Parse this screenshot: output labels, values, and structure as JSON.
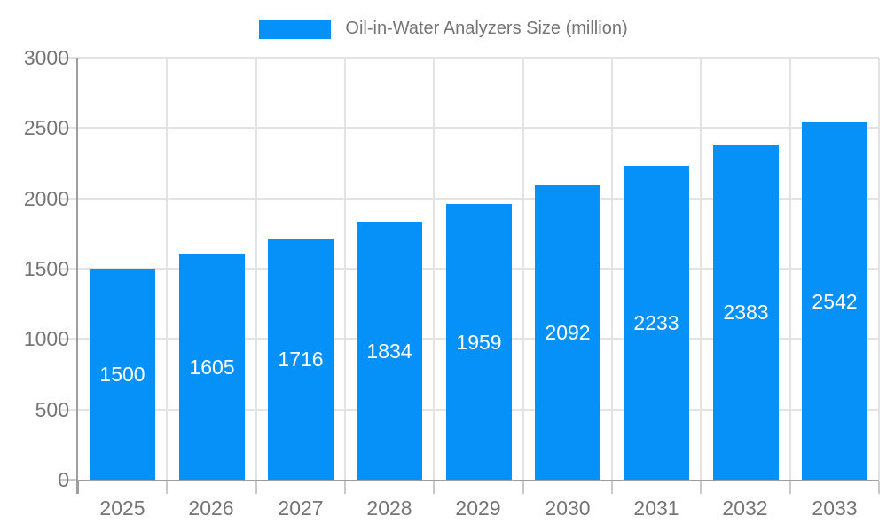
{
  "legend": {
    "label": "Oil-in-Water Analyzers Size (million)"
  },
  "chart_data": {
    "type": "bar",
    "title": "Oil-in-Water Analyzers Size (million)",
    "categories": [
      "2025",
      "2026",
      "2027",
      "2028",
      "2029",
      "2030",
      "2031",
      "2032",
      "2033"
    ],
    "values": [
      1500,
      1605,
      1716,
      1834,
      1959,
      2092,
      2233,
      2383,
      2542
    ],
    "xlabel": "",
    "ylabel": "",
    "ylim": [
      0,
      3000
    ],
    "yticks": [
      0,
      500,
      1000,
      1500,
      2000,
      2500,
      3000
    ],
    "grid": true,
    "legend_position": "top",
    "value_labels": "inside-center",
    "colors": {
      "bar": "#0591f7",
      "axis_line": "#9e9e9e",
      "grid_line": "#e3e3e3",
      "tick_line": "#c9c9c9",
      "axis_text": "#757575",
      "value_label_text": "#ffffff",
      "background": "#ffffff"
    }
  }
}
